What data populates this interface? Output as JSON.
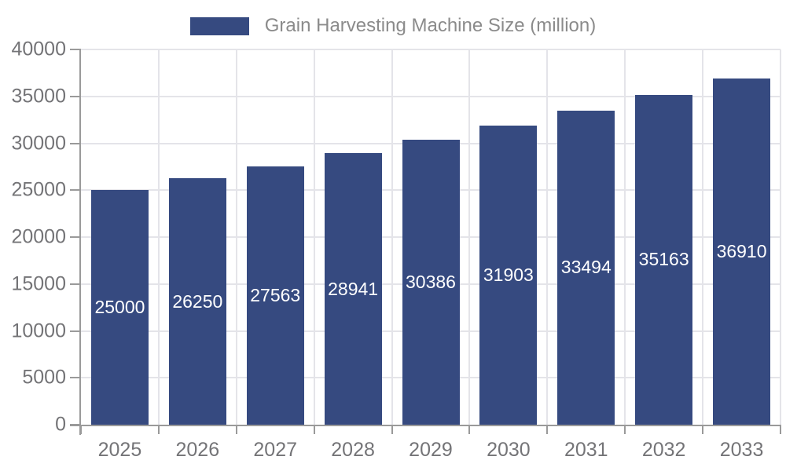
{
  "legend": {
    "label": "Grain Harvesting Machine Size (million)"
  },
  "chart_data": {
    "type": "bar",
    "title": "Grain Harvesting Machine Size (million)",
    "series_name": "Grain Harvesting Machine Size (million)",
    "categories": [
      "2025",
      "2026",
      "2027",
      "2028",
      "2029",
      "2030",
      "2031",
      "2032",
      "2033"
    ],
    "values": [
      25000,
      26250,
      27563,
      28941,
      30386,
      31903,
      33494,
      35163,
      36910
    ],
    "value_labels": [
      "25000",
      "26250",
      "27563",
      "28941",
      "30386",
      "31903",
      "33494",
      "35163",
      "36910"
    ],
    "xlabel": "",
    "ylabel": "",
    "ylim": [
      0,
      40000
    ],
    "yticks": [
      0,
      5000,
      10000,
      15000,
      20000,
      25000,
      30000,
      35000,
      40000
    ],
    "ytick_labels": [
      "0",
      "5000",
      "10000",
      "15000",
      "20000",
      "25000",
      "30000",
      "35000",
      "40000"
    ],
    "grid": true,
    "legend_position": "top-center",
    "label_position": "inside-middle",
    "colors": {
      "bar": "#364A80",
      "bar_label": "#ffffff",
      "grid": "#e4e4e9",
      "axis": "#9a9a9a",
      "tick_text": "#747477",
      "legend_text": "#8b8b8b",
      "background": "#ffffff"
    }
  }
}
